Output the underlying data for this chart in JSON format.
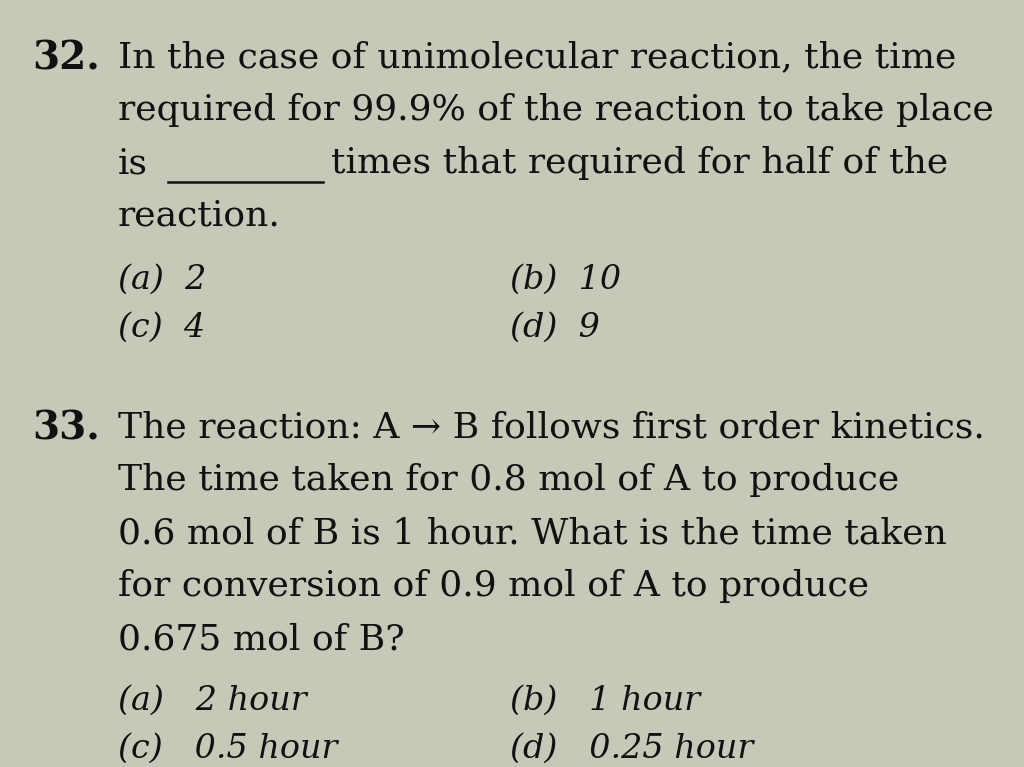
{
  "background_color": "#c8c8b8",
  "text_color": "#111111",
  "figure_width": 10.24,
  "figure_height": 7.67,
  "dpi": 100,
  "q32_number": "32.",
  "q32_line1": "In the case of unimolecular reaction, the time",
  "q32_line2": "required for 99.9% of the reaction to take place",
  "q32_line3_pre": "is ",
  "q32_line3_mid": "        ",
  "q32_line3_post": " times that required for half of the",
  "q32_line4": "reaction.",
  "q32_opt_a": "(a)  2",
  "q32_opt_b": "(b)  10",
  "q32_opt_c": "(c)  4",
  "q32_opt_d": "(d)  9",
  "q33_number": "33.",
  "q33_line1": "The reaction: A → B follows first order kinetics.",
  "q33_line2": "The time taken for 0.8 mol of A to produce",
  "q33_line3": "0.6 mol of B is 1 hour. What is the time taken",
  "q33_line4": "for conversion of 0.9 mol of A to produce",
  "q33_line5": "0.675 mol of B?",
  "q33_opt_a": "(a)   2 hour",
  "q33_opt_b": "(b)   1 hour",
  "q33_opt_c": "(c)   0.5 hour",
  "q33_opt_d": "(d)   0.25 hour",
  "font_size_q": 26,
  "font_size_opt": 24,
  "font_size_num": 28
}
